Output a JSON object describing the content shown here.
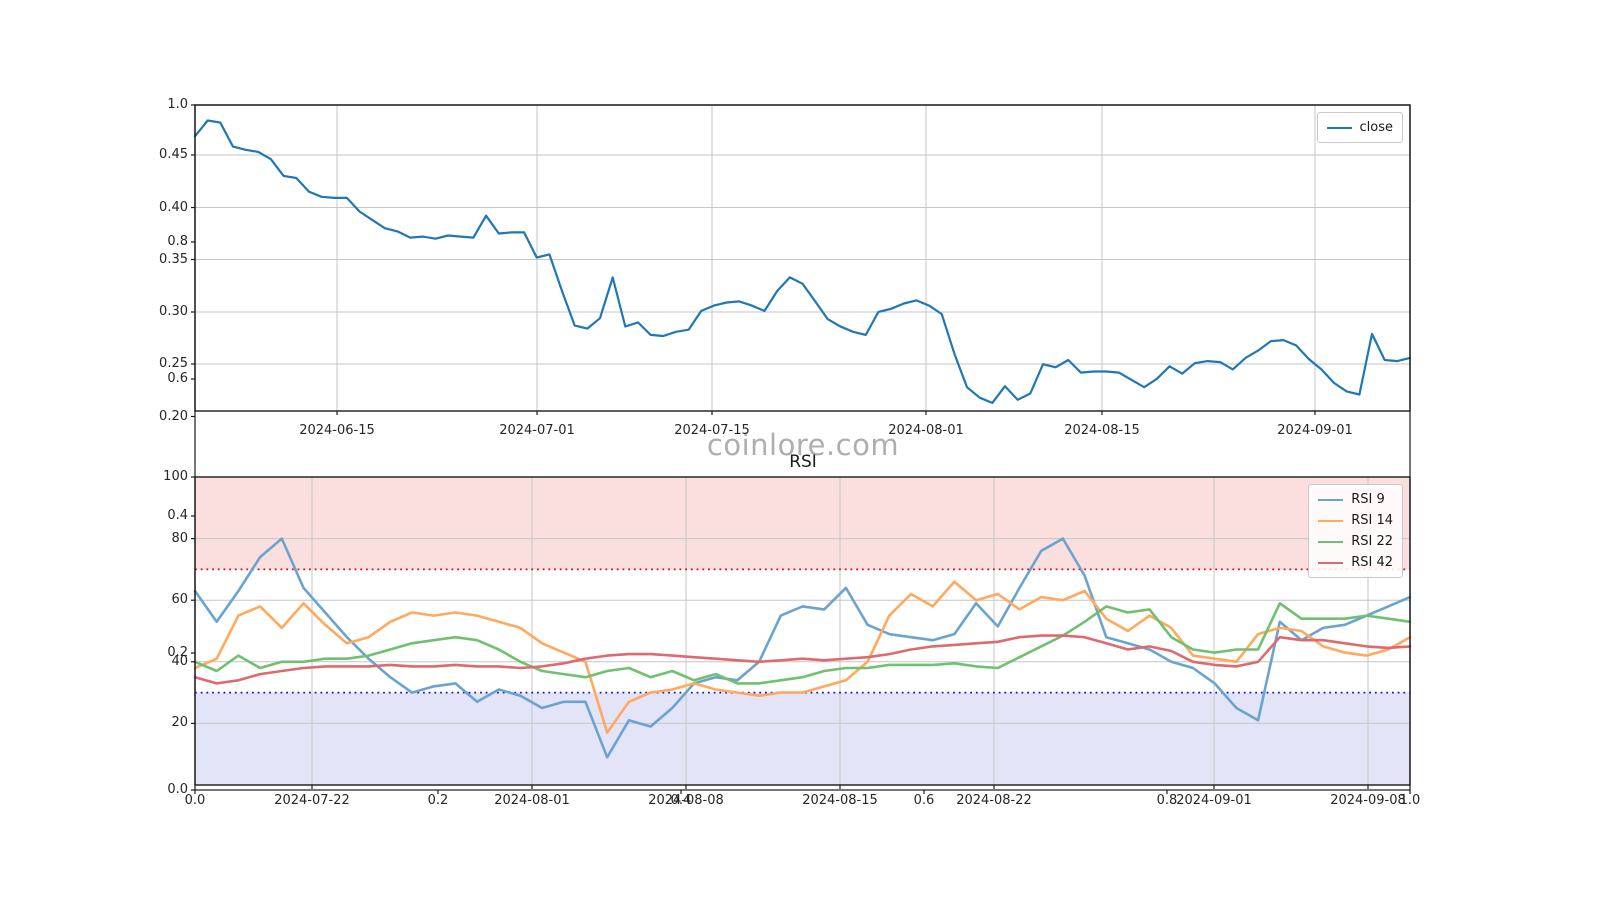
{
  "watermark": "coinlore.com",
  "colors": {
    "close": "#1f77b4",
    "rsi9": "#6ba3cf",
    "rsi14": "#ffa85e",
    "rsi22": "#6fc06f",
    "rsi42": "#dd6a6e",
    "grid": "#c6c6c6",
    "spine": "#1a1a1a",
    "overbought_line": "#e8000b",
    "oversold_line": "#1414cc",
    "overbought_band": "#fbdede",
    "oversold_band": "#e4e4f8"
  },
  "ghost_axis": {
    "y_labels": [
      "1.0",
      "0.8",
      "0.6",
      "0.4",
      "0.2",
      "0.0"
    ],
    "x_labels": [
      "0.0",
      "0.2",
      "0.4",
      "0.6",
      "0.8",
      "1.0"
    ]
  },
  "chart_data": [
    {
      "type": "line",
      "title": "",
      "legend": [
        "close"
      ],
      "legend_position": "upper right",
      "grid": true,
      "x_start": "2024-06-04",
      "x_end": "2024-09-08",
      "x_tick_labels": [
        "2024-06-15",
        "2024-07-01",
        "2024-07-15",
        "2024-08-01",
        "2024-08-15",
        "2024-09-01"
      ],
      "y_tick_labels": [
        "0.45",
        "0.40",
        "0.35",
        "0.30",
        "0.25",
        "0.20"
      ],
      "ylim": [
        0.205,
        0.498
      ],
      "series": [
        {
          "name": "close",
          "color": "#1f77b4",
          "values": [
            0.468,
            0.483,
            0.481,
            0.458,
            0.455,
            0.453,
            0.446,
            0.43,
            0.428,
            0.415,
            0.41,
            0.409,
            0.409,
            0.396,
            0.388,
            0.38,
            0.377,
            0.371,
            0.372,
            0.37,
            0.373,
            0.372,
            0.371,
            0.392,
            0.375,
            0.376,
            0.376,
            0.352,
            0.355,
            0.32,
            0.287,
            0.284,
            0.294,
            0.333,
            0.286,
            0.29,
            0.278,
            0.277,
            0.281,
            0.283,
            0.301,
            0.306,
            0.309,
            0.31,
            0.306,
            0.301,
            0.32,
            0.333,
            0.327,
            0.31,
            0.293,
            0.286,
            0.281,
            0.278,
            0.3,
            0.303,
            0.308,
            0.311,
            0.306,
            0.298,
            0.26,
            0.228,
            0.218,
            0.213,
            0.229,
            0.216,
            0.222,
            0.25,
            0.247,
            0.254,
            0.242,
            0.243,
            0.243,
            0.242,
            0.235,
            0.228,
            0.236,
            0.248,
            0.241,
            0.251,
            0.253,
            0.252,
            0.245,
            0.256,
            0.263,
            0.272,
            0.273,
            0.268,
            0.255,
            0.245,
            0.232,
            0.224,
            0.221,
            0.279,
            0.254,
            0.253,
            0.256
          ]
        }
      ]
    },
    {
      "type": "line",
      "title": "RSI",
      "legend": [
        "RSI 9",
        "RSI 14",
        "RSI 22",
        "RSI 42"
      ],
      "legend_position": "upper right",
      "grid": true,
      "x_start": "2024-07-17",
      "x_end": "2024-09-11",
      "x_tick_labels": [
        "2024-07-22",
        "2024-08-01",
        "2024-08-08",
        "2024-08-15",
        "2024-08-22",
        "2024-09-01",
        "2024-09-08"
      ],
      "y_tick_labels": [
        "100",
        "80",
        "60",
        "40",
        "20"
      ],
      "ylim": [
        0,
        100
      ],
      "overbought_level": 70,
      "oversold_level": 30,
      "overbought_band": [
        70,
        100
      ],
      "oversold_band": [
        0,
        30
      ],
      "series": [
        {
          "name": "RSI 9",
          "color": "#6ba3cf",
          "values": [
            63,
            53,
            63,
            74,
            80,
            64,
            56,
            48,
            41,
            35,
            30,
            32,
            33,
            27,
            31,
            29,
            25,
            27,
            27,
            9,
            21,
            19,
            25,
            33,
            35,
            34,
            40,
            55,
            58,
            57,
            64,
            52,
            49,
            48,
            47,
            49,
            59,
            51.5,
            64,
            76,
            80,
            68,
            48,
            46,
            44,
            40,
            38,
            33,
            25,
            21,
            53,
            47,
            51,
            52,
            55,
            58,
            61
          ]
        },
        {
          "name": "RSI 14",
          "color": "#ffa85e",
          "values": [
            38,
            41,
            55,
            58,
            51,
            59,
            52,
            46,
            48,
            53,
            56,
            55,
            56,
            55,
            53,
            51,
            46,
            43,
            40,
            17,
            27,
            30,
            31,
            33,
            31,
            30,
            29,
            30,
            30,
            32,
            34,
            40,
            55,
            62,
            58,
            66,
            60,
            62,
            57,
            61,
            60,
            63,
            54,
            50,
            55,
            51,
            42,
            41,
            40,
            49,
            51,
            50,
            45,
            43,
            42,
            44,
            48
          ]
        },
        {
          "name": "RSI 22",
          "color": "#6fc06f",
          "values": [
            40,
            37,
            42,
            38,
            40,
            40,
            41,
            41,
            42,
            44,
            46,
            47,
            48,
            47,
            44,
            40,
            37,
            36,
            35,
            37,
            38,
            35,
            37,
            34,
            36,
            33,
            33,
            34,
            35,
            37,
            38,
            38,
            39,
            39,
            39,
            39.5,
            38.5,
            38,
            41.5,
            45,
            48.5,
            53,
            58,
            56,
            57,
            48,
            44,
            43,
            44,
            44,
            59,
            54,
            54,
            54,
            55,
            54,
            53
          ]
        },
        {
          "name": "RSI 42",
          "color": "#dd6a6e",
          "values": [
            35,
            33,
            34,
            36,
            37,
            38,
            38.5,
            38.5,
            38.5,
            39,
            38.5,
            38.5,
            39,
            38.5,
            38.5,
            38,
            38.5,
            39.5,
            41,
            42,
            42.5,
            42.5,
            42,
            41.5,
            41,
            40.5,
            40,
            40.5,
            41,
            40.5,
            41,
            41.5,
            42.5,
            44,
            45,
            45.5,
            46,
            46.5,
            48,
            48.5,
            48.5,
            48,
            46,
            44,
            45,
            43.5,
            40,
            39,
            38.5,
            40,
            48,
            47,
            47,
            46,
            45,
            44.5,
            45
          ]
        }
      ]
    }
  ]
}
